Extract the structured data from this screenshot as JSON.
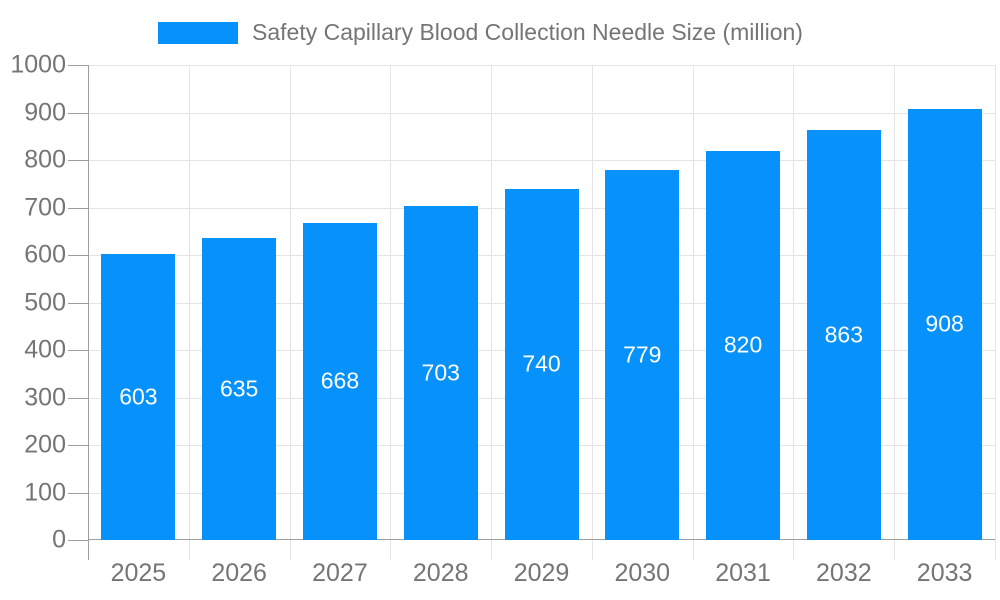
{
  "chart_data": {
    "type": "bar",
    "title": "Safety Capillary Blood Collection Needle Size (million)",
    "categories": [
      "2025",
      "2026",
      "2027",
      "2028",
      "2029",
      "2030",
      "2031",
      "2032",
      "2033"
    ],
    "values": [
      603,
      635,
      668,
      703,
      740,
      779,
      820,
      863,
      908
    ],
    "xlabel": "",
    "ylabel": "",
    "ylim": [
      0,
      1000
    ],
    "ytick_interval": 100,
    "grid": true,
    "legend_position": "top",
    "value_label_position": "inside-center"
  },
  "colors": {
    "bar": "#0691fb",
    "grid": "#e5e5e5",
    "axis": "#9e9e9e",
    "tick_text": "#757575",
    "value_label": "#ffffff",
    "background": "#ffffff"
  }
}
